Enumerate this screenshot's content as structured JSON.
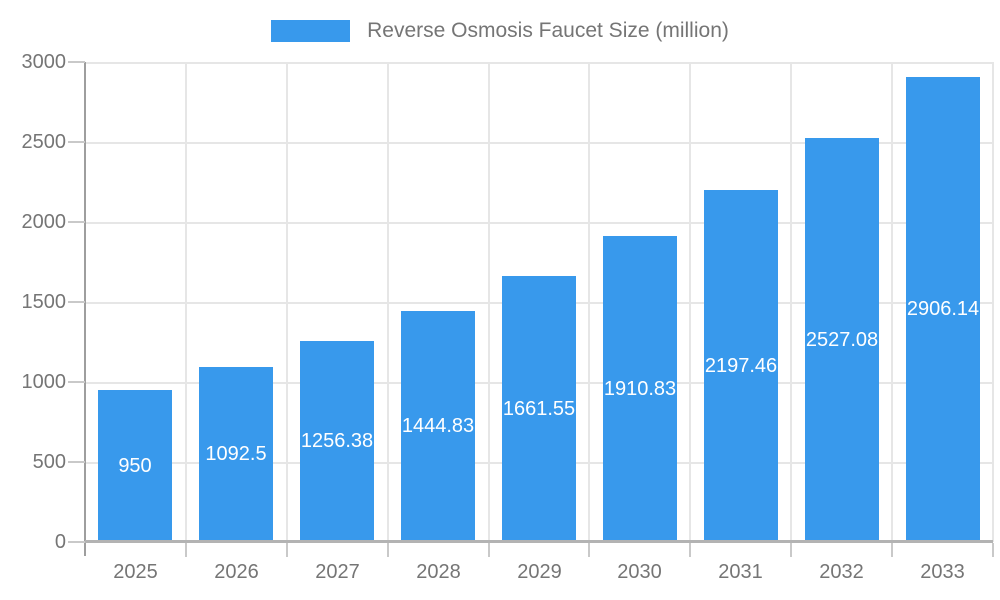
{
  "colors": {
    "bar": "#3899ec",
    "grid": "#e6e6e6",
    "axis_line": "#9e9e9e",
    "baseline": "#b3b3b3",
    "tick": "#c9c9c9",
    "tick_text": "#757575",
    "bar_label": "#ffffff",
    "background": "#ffffff"
  },
  "chart_data": {
    "type": "bar",
    "title": "Reverse Osmosis Faucet Size (million)",
    "xlabel": "",
    "ylabel": "",
    "categories": [
      "2025",
      "2026",
      "2027",
      "2028",
      "2029",
      "2030",
      "2031",
      "2032",
      "2033"
    ],
    "values": [
      950,
      1092.5,
      1256.38,
      1444.83,
      1661.55,
      1910.83,
      2197.46,
      2527.08,
      2906.14
    ],
    "value_labels": [
      "950",
      "1092.5",
      "1256.38",
      "1444.83",
      "1661.55",
      "1910.83",
      "2197.46",
      "2527.08",
      "2906.14"
    ],
    "ylim": [
      0,
      3000
    ],
    "yticks": [
      0,
      500,
      1000,
      1500,
      2000,
      2500,
      3000
    ],
    "ytick_labels": [
      "0",
      "500",
      "1000",
      "1500",
      "2000",
      "2500",
      "3000"
    ],
    "grid": true,
    "legend_position": "top"
  }
}
